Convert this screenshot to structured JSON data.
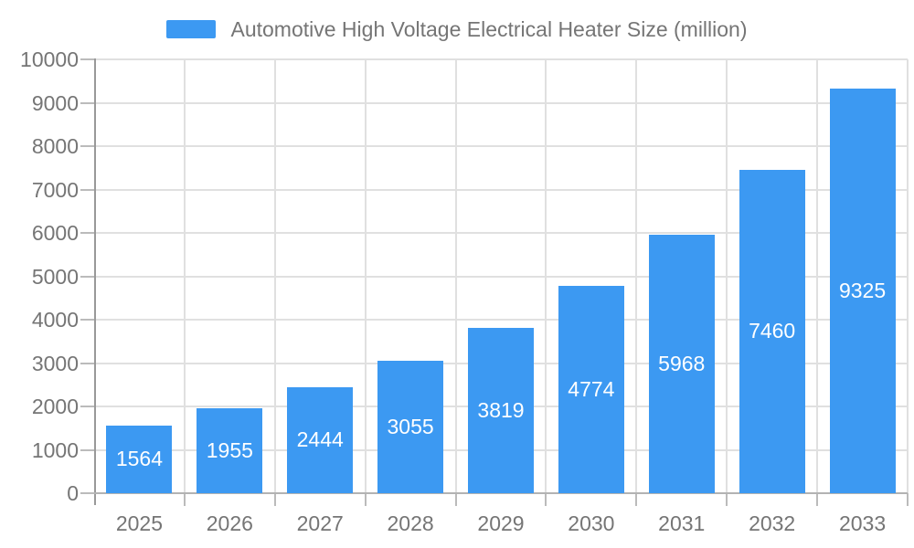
{
  "chart_data": {
    "type": "bar",
    "title": "Automotive High Voltage Electrical Heater Size (million)",
    "categories": [
      "2025",
      "2026",
      "2027",
      "2028",
      "2029",
      "2030",
      "2031",
      "2032",
      "2033"
    ],
    "values": [
      1564,
      1955,
      2444,
      3055,
      3819,
      4774,
      5968,
      7460,
      9325
    ],
    "xlabel": "",
    "ylabel": "",
    "ylim": [
      0,
      10000
    ],
    "ytick_step": 1000,
    "grid": true,
    "legend_position": "top",
    "colors": {
      "bar": "#3C99F2",
      "label_text": "#757575",
      "value_text": "#ffffff",
      "gridline": "#e0e0e0",
      "y_axis_line": "#999999",
      "x_axis_line": "#b3b3b3",
      "tick": "#bbbbbb"
    }
  }
}
